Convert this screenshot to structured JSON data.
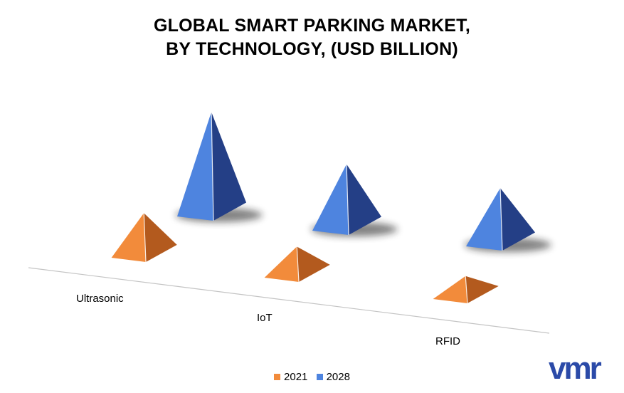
{
  "title_line1": "GLOBAL SMART PARKING MARKET,",
  "title_line2": "BY TECHNOLOGY, (USD BILLION)",
  "colors": {
    "2021_light": "#f28b3b",
    "2021_dark": "#b35a1e",
    "2028_light": "#4e84df",
    "2028_dark": "#243f86"
  },
  "chart_data": {
    "type": "bar",
    "title": "GLOBAL SMART PARKING MARKET, BY TECHNOLOGY, (USD BILLION)",
    "categories": [
      "Ultrasonic",
      "IoT",
      "RFID"
    ],
    "series": [
      {
        "name": "2021",
        "values": [
          1.8,
          1.3,
          1.0
        ]
      },
      {
        "name": "2028",
        "values": [
          4.0,
          2.6,
          2.3
        ]
      }
    ],
    "ylim": [
      0,
      4.5
    ],
    "legend_position": "bottom",
    "grid": false
  },
  "legend": [
    {
      "label": "2021",
      "color": "#f28b3b"
    },
    {
      "label": "2028",
      "color": "#4e84df"
    }
  ],
  "logo": {
    "text": "vmr",
    "color": "#2b4aa8"
  }
}
